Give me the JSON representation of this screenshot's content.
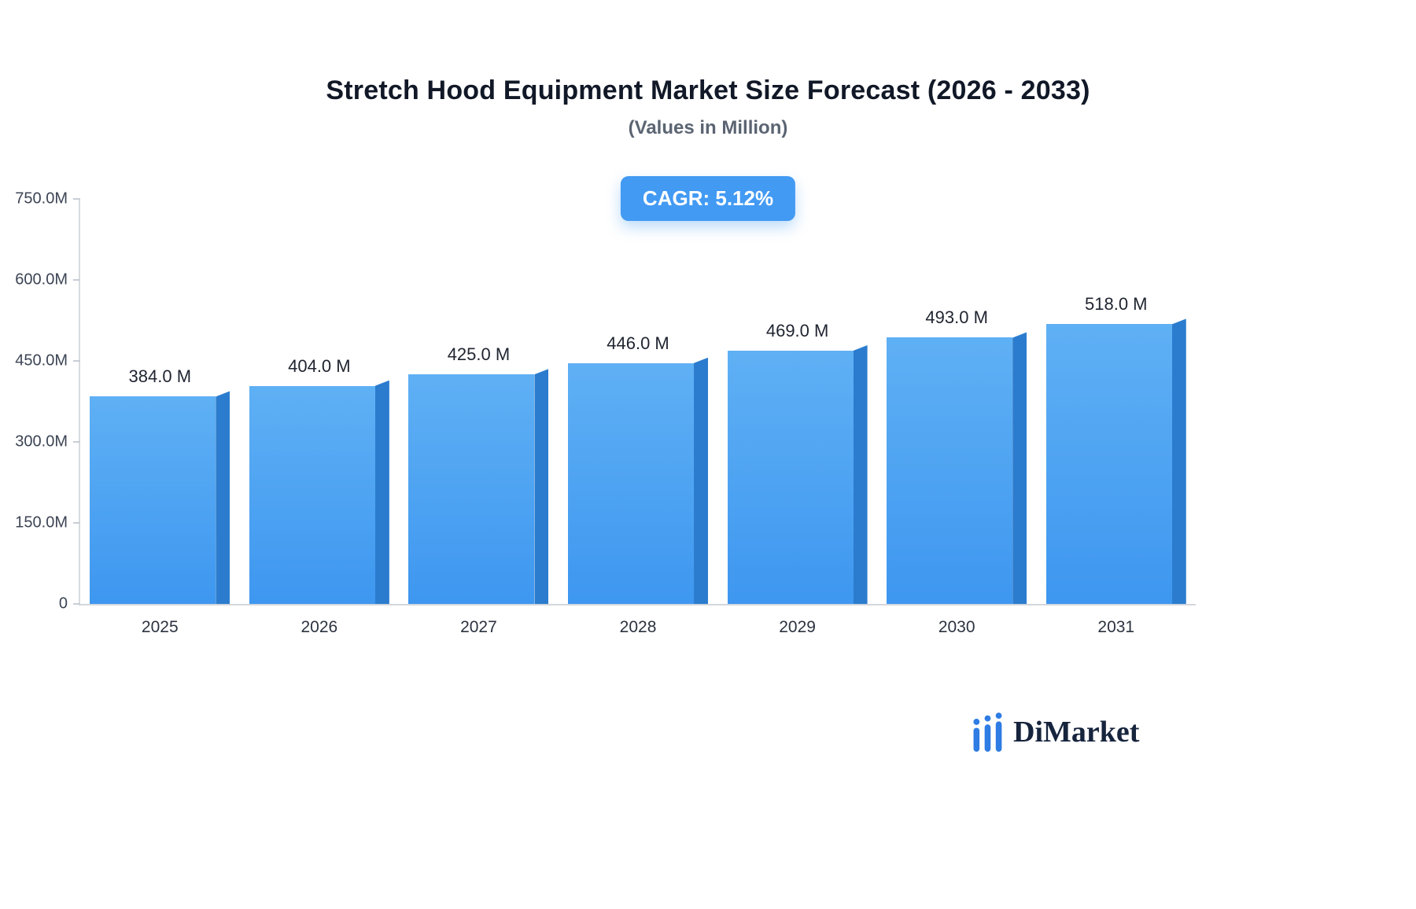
{
  "title": "Stretch Hood Equipment Market Size Forecast (2026 - 2033)",
  "subtitle": "(Values in Million)",
  "cagr_badge": "CAGR: 5.12%",
  "brand": {
    "name": "DiMarket"
  },
  "colors": {
    "bar_front_top": "#5FB0F4",
    "bar_front_bottom": "#3E97F0",
    "bar_side": "#2B7CCE",
    "badge_bg": "#429AF3",
    "axis": "#D2D6DC",
    "title_text": "#111827",
    "subtitle_text": "#5B6472",
    "logo_text": "#16243D",
    "logo_icon": "#2E7CE4"
  },
  "chart_data": {
    "type": "bar",
    "title": "Stretch Hood Equipment Market Size Forecast (2026 - 2033)",
    "subtitle": "(Values in Million)",
    "annotation": "CAGR: 5.12%",
    "categories": [
      "2025",
      "2026",
      "2027",
      "2028",
      "2029",
      "2030",
      "2031"
    ],
    "values": [
      384.0,
      404.0,
      425.0,
      446.0,
      469.0,
      493.0,
      518.0
    ],
    "value_labels": [
      "384.0 M",
      "404.0 M",
      "425.0 M",
      "446.0 M",
      "469.0 M",
      "493.0 M",
      "518.0 M"
    ],
    "xlabel": "",
    "ylabel": "",
    "ylim": [
      0,
      750
    ],
    "y_ticks": [
      {
        "label": "750.0M",
        "value": 750
      },
      {
        "label": "600.0M",
        "value": 600
      },
      {
        "label": "450.0M",
        "value": 450
      },
      {
        "label": "300.0M",
        "value": 300
      },
      {
        "label": "150.0M",
        "value": 150
      },
      {
        "label": "0",
        "value": 0
      }
    ],
    "grid": false,
    "legend": false
  }
}
